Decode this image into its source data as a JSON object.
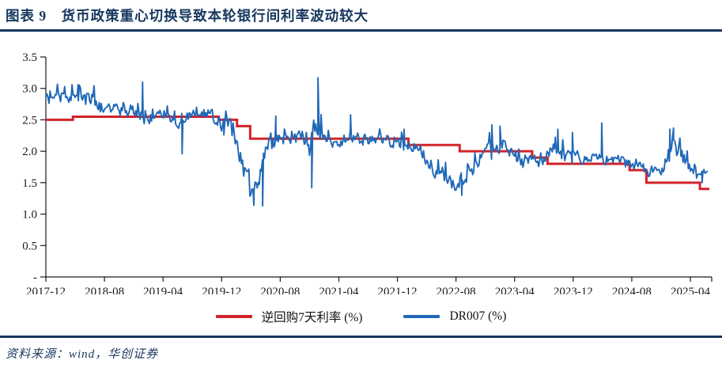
{
  "header": {
    "title": "图表 9　货币政策重心切换导致本轮银行间利率波动较大"
  },
  "footer": {
    "source_label": "资料来源：wind，华创证券"
  },
  "colors": {
    "navy": "#17375e",
    "red": "#d2232a",
    "blue": "#1f68b8",
    "axis": "#1a1a1a"
  },
  "chart_data": {
    "type": "line",
    "title": "",
    "xlabel": "",
    "ylabel": "",
    "ylim": [
      0,
      3.5
    ],
    "grid": false,
    "legend_position": "bottom",
    "y_ticks": [
      0,
      0.5,
      1.0,
      1.5,
      2.0,
      2.5,
      3.0,
      3.5
    ],
    "y_tick_labels": [
      "-",
      "0.5",
      "1.0",
      "1.5",
      "2.0",
      "2.5",
      "3.0",
      "3.5"
    ],
    "x_tick_labels": [
      "2017-12",
      "2018-08",
      "2019-04",
      "2019-12",
      "2020-08",
      "2021-04",
      "2021-12",
      "2022-08",
      "2023-04",
      "2023-12",
      "2024-08",
      "2025-04"
    ],
    "x_tick_interval_months": 8,
    "start_month": "2017-12",
    "end_month": "2025-06",
    "series": [
      {
        "name": "逆回购7天利率 (%)",
        "color": "#d2232a",
        "style": "step",
        "end_m": 90.6,
        "steps": [
          {
            "date": "2017-12",
            "m": 0,
            "rate": 2.5
          },
          {
            "date": "2018-03",
            "m": 3.7,
            "rate": 2.55
          },
          {
            "date": "2019-11",
            "m": 23.6,
            "rate": 2.5
          },
          {
            "date": "2020-02",
            "m": 26.1,
            "rate": 2.4
          },
          {
            "date": "2020-03",
            "m": 27.9,
            "rate": 2.2
          },
          {
            "date": "2022-01",
            "m": 49.5,
            "rate": 2.1
          },
          {
            "date": "2022-08",
            "m": 56.5,
            "rate": 2.0
          },
          {
            "date": "2023-06",
            "m": 66.4,
            "rate": 1.9
          },
          {
            "date": "2023-08",
            "m": 68.5,
            "rate": 1.8
          },
          {
            "date": "2024-07",
            "m": 79.7,
            "rate": 1.7
          },
          {
            "date": "2024-09",
            "m": 82.0,
            "rate": 1.5
          },
          {
            "date": "2025-05",
            "m": 89.3,
            "rate": 1.4
          }
        ]
      },
      {
        "name": "DR007 (%)",
        "color": "#1f68b8",
        "style": "daily-noisy",
        "samples_per_month": 7,
        "noise_seed": 20177,
        "monthly_avg": [
          2.88,
          2.82,
          2.86,
          2.84,
          2.88,
          2.82,
          2.88,
          2.72,
          2.66,
          2.7,
          2.65,
          2.62,
          2.66,
          2.55,
          2.5,
          2.55,
          2.6,
          2.5,
          2.42,
          2.52,
          2.6,
          2.58,
          2.62,
          2.52,
          2.4,
          2.5,
          2.1,
          1.75,
          1.4,
          1.45,
          1.95,
          2.15,
          2.2,
          2.18,
          2.22,
          2.25,
          2.05,
          2.45,
          2.2,
          2.12,
          2.1,
          2.18,
          2.22,
          2.18,
          2.15,
          2.2,
          2.18,
          2.15,
          2.12,
          2.1,
          2.05,
          2.08,
          1.8,
          1.6,
          1.68,
          1.55,
          1.42,
          1.55,
          1.68,
          1.8,
          2.0,
          2.0,
          2.1,
          2.05,
          1.95,
          1.82,
          1.9,
          1.8,
          1.85,
          2.0,
          1.98,
          1.95,
          1.9,
          1.85,
          1.85,
          1.88,
          1.85,
          1.83,
          1.9,
          1.82,
          1.75,
          1.8,
          1.65,
          1.7,
          1.65,
          1.95,
          2.05,
          1.9,
          1.72,
          1.6,
          1.65
        ],
        "monthly_vol": [
          0.1,
          0.1,
          0.1,
          0.1,
          0.12,
          0.1,
          0.12,
          0.08,
          0.08,
          0.08,
          0.08,
          0.08,
          0.09,
          0.1,
          0.08,
          0.08,
          0.09,
          0.09,
          0.12,
          0.09,
          0.08,
          0.09,
          0.08,
          0.09,
          0.1,
          0.08,
          0.15,
          0.18,
          0.14,
          0.15,
          0.14,
          0.1,
          0.08,
          0.08,
          0.08,
          0.08,
          0.15,
          0.22,
          0.1,
          0.08,
          0.08,
          0.09,
          0.08,
          0.08,
          0.08,
          0.09,
          0.08,
          0.08,
          0.09,
          0.07,
          0.07,
          0.08,
          0.12,
          0.1,
          0.1,
          0.1,
          0.1,
          0.1,
          0.1,
          0.12,
          0.14,
          0.12,
          0.1,
          0.1,
          0.1,
          0.09,
          0.09,
          0.08,
          0.09,
          0.12,
          0.11,
          0.11,
          0.1,
          0.07,
          0.06,
          0.08,
          0.07,
          0.06,
          0.07,
          0.06,
          0.06,
          0.07,
          0.07,
          0.06,
          0.07,
          0.14,
          0.13,
          0.1,
          0.08,
          0.07,
          0.05
        ],
        "extremes": [
          {
            "m": 4.4,
            "v": 3.06
          },
          {
            "m": 6.6,
            "v": 3.02
          },
          {
            "m": 13.2,
            "v": 3.1
          },
          {
            "m": 18.6,
            "v": 1.96
          },
          {
            "m": 24.3,
            "v": 2.26
          },
          {
            "m": 28.4,
            "v": 1.14
          },
          {
            "m": 29.6,
            "v": 1.13
          },
          {
            "m": 31.4,
            "v": 2.56
          },
          {
            "m": 36.3,
            "v": 1.42
          },
          {
            "m": 37.15,
            "v": 3.17
          },
          {
            "m": 37.5,
            "v": 2.25
          },
          {
            "m": 41.6,
            "v": 2.58
          },
          {
            "m": 48.9,
            "v": 2.35
          },
          {
            "m": 56.8,
            "v": 1.3
          },
          {
            "m": 60.9,
            "v": 2.42
          },
          {
            "m": 62.0,
            "v": 2.4
          },
          {
            "m": 69.9,
            "v": 2.35
          },
          {
            "m": 71.9,
            "v": 2.3
          },
          {
            "m": 75.9,
            "v": 2.45
          },
          {
            "m": 85.2,
            "v": 2.35
          },
          {
            "m": 85.7,
            "v": 2.37
          },
          {
            "m": 89.6,
            "v": 1.5
          },
          {
            "m": 90.3,
            "v": 1.68
          }
        ]
      }
    ]
  }
}
